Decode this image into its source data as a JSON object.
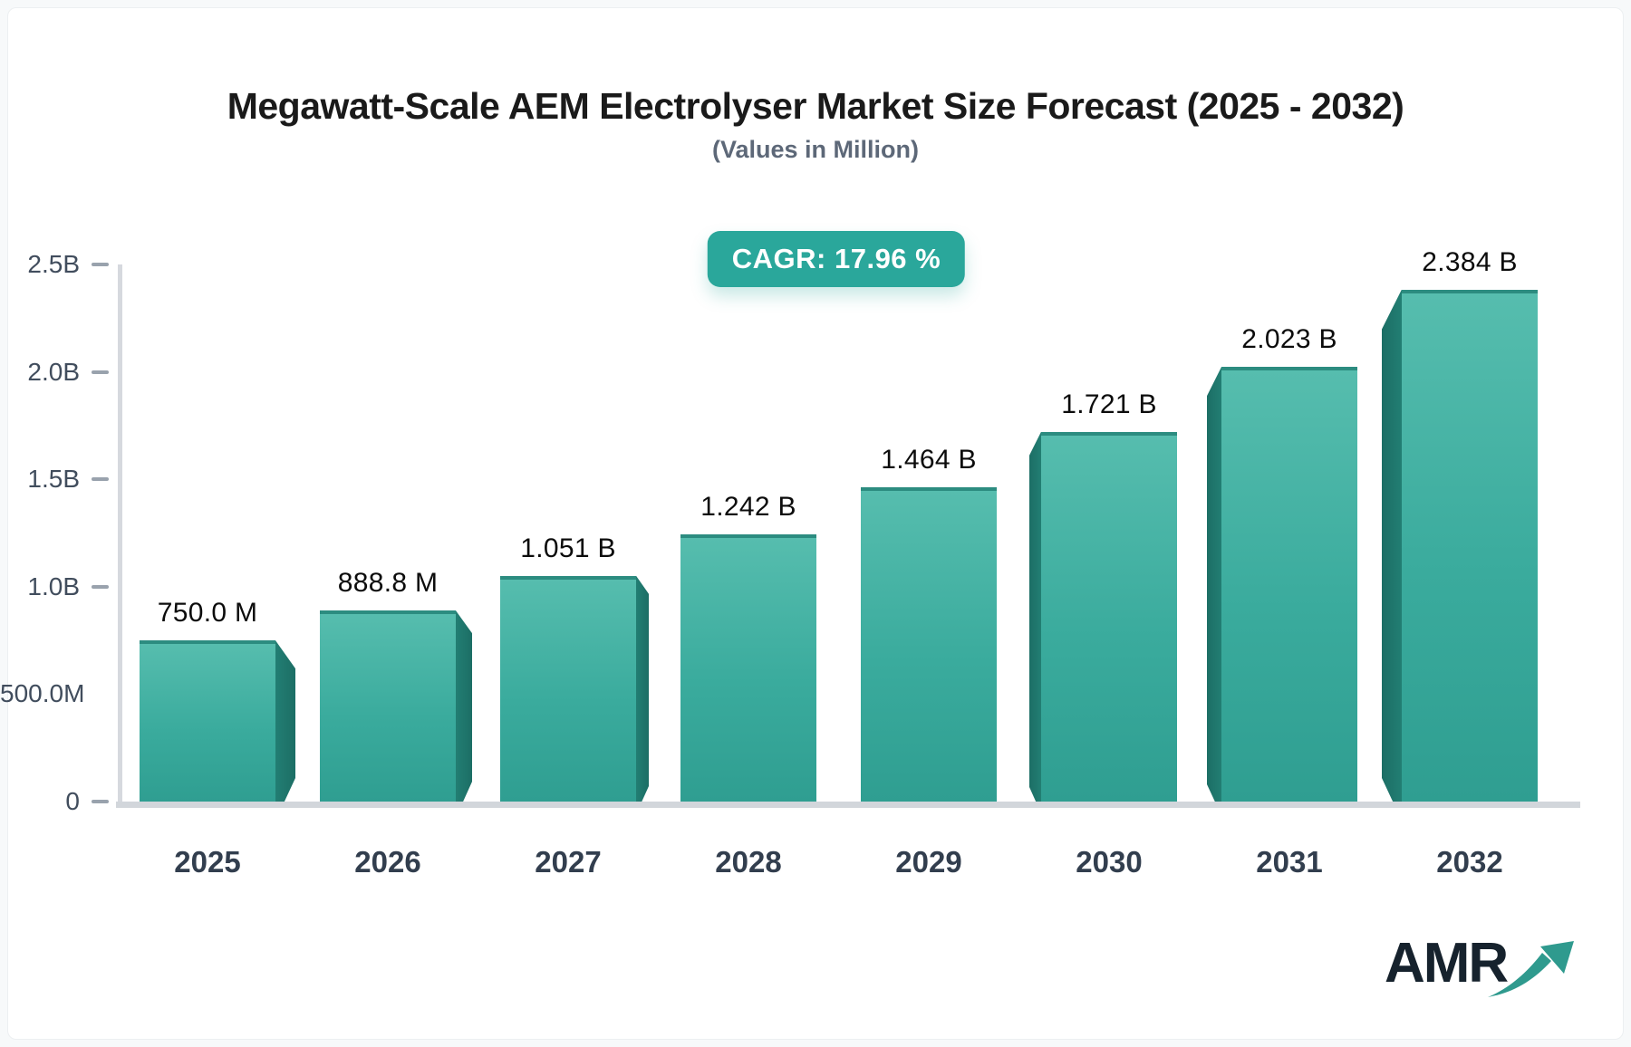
{
  "header": {
    "title": "Megawatt-Scale AEM Electrolyser Market Size Forecast (2025 - 2032)",
    "subtitle": "(Values in Million)",
    "cagr_label": "CAGR: 17.96 %"
  },
  "logo": {
    "text": "AMR",
    "arrow_icon": "trend-up-arrow",
    "arrow_color": "#2f9a8e",
    "text_color": "#16222d"
  },
  "chart_data": {
    "type": "bar",
    "title": "Megawatt-Scale AEM Electrolyser Market Size Forecast (2025 - 2032)",
    "subtitle": "(Values in Million)",
    "cagr_percent": 17.96,
    "categories": [
      "2025",
      "2026",
      "2027",
      "2028",
      "2029",
      "2030",
      "2031",
      "2032"
    ],
    "values_million": [
      750.0,
      888.8,
      1051,
      1242,
      1464,
      1721,
      2023,
      2384
    ],
    "value_labels": [
      "750.0 M",
      "888.8 M",
      "1.051 B",
      "1.242 B",
      "1.464 B",
      "1.721 B",
      "2.023 B",
      "2.384 B"
    ],
    "xlabel": "",
    "ylabel": "",
    "ylim_million": [
      0,
      2500
    ],
    "y_ticks": [
      {
        "label": "2.5B",
        "value_million": 2500,
        "dash": true
      },
      {
        "label": "2.0B",
        "value_million": 2000,
        "dash": true
      },
      {
        "label": "1.5B",
        "value_million": 1500,
        "dash": true
      },
      {
        "label": "1.0B",
        "value_million": 1000,
        "dash": true
      },
      {
        "label": "500.0M",
        "value_million": 500,
        "dash": false
      },
      {
        "label": "0",
        "value_million": 0,
        "dash": true
      }
    ],
    "grid": "off",
    "legend": "none",
    "colors": {
      "bar_face_top": "#56bdae",
      "bar_face_bottom": "#2f9e91",
      "bar_side": "#1f786e",
      "accent_badge": "#2aa79b",
      "axis_line": "#d6d9de"
    }
  }
}
